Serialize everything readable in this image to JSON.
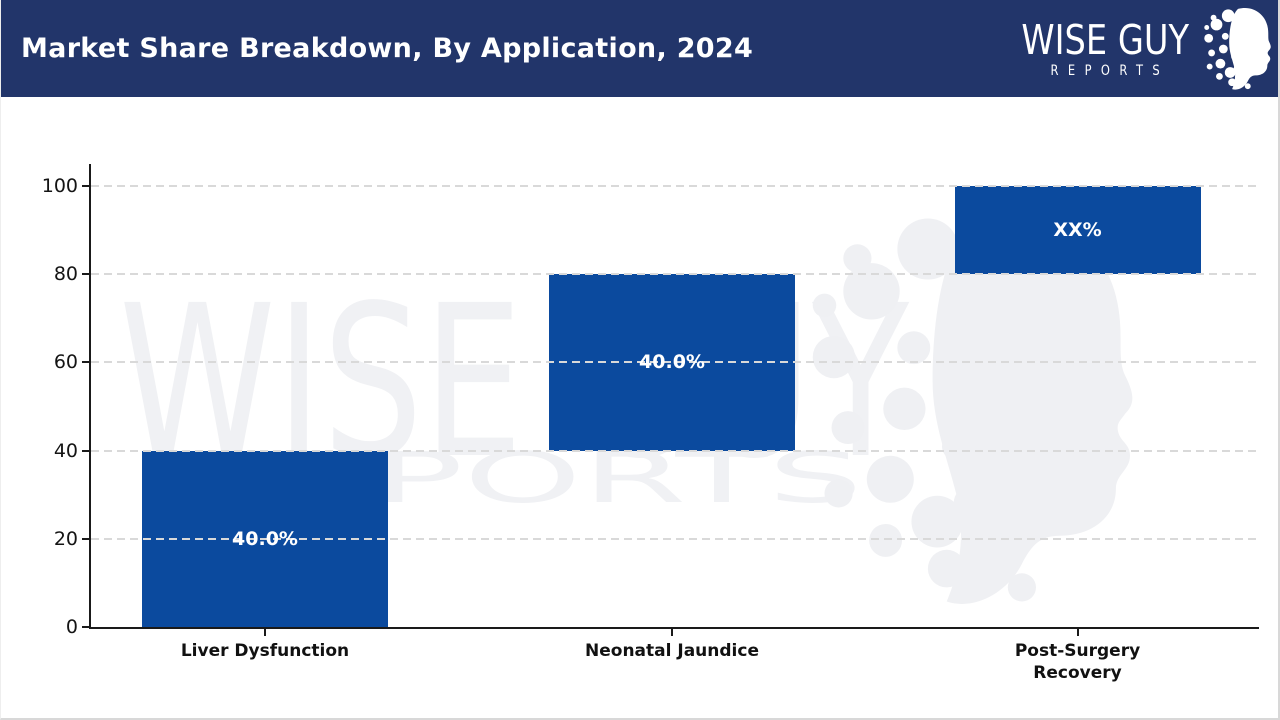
{
  "header": {
    "title": "Market Share Breakdown, By Application, 2024",
    "brand": {
      "line1": "WISE GUY",
      "line2": "REPORTS"
    }
  },
  "watermark": {
    "line1": "WISE GUY",
    "line2": "REPORTS"
  },
  "colors": {
    "header_bg": "#22356A",
    "bar": "#0B4A9E",
    "bar_label": "#ffffff",
    "grid": "#d9d9d9",
    "axis": "#1a1a1a",
    "watermark": "#f0f1f4"
  },
  "chart_data": {
    "type": "bar",
    "subtype": "waterfall-market-share",
    "title": "Market Share Breakdown, By Application, 2024",
    "categories": [
      "Liver Dysfunction",
      "Neonatal Jaundice",
      "Post-Surgery Recovery"
    ],
    "x_tick_labels": [
      "Liver Dysfunction",
      "Neonatal Jaundice",
      "Post-Surgery\nRecovery"
    ],
    "bars": [
      {
        "category": "Liver Dysfunction",
        "start": 0,
        "end": 40,
        "value_label": "40.0%"
      },
      {
        "category": "Neonatal Jaundice",
        "start": 40,
        "end": 80,
        "value_label": "40.0%"
      },
      {
        "category": "Post-Surgery Recovery",
        "start": 80,
        "end": 100,
        "value_label": "XX%"
      }
    ],
    "xlabel": "",
    "ylabel": "",
    "y_ticks": [
      0,
      20,
      40,
      60,
      80,
      100
    ],
    "ylim": [
      0,
      105
    ],
    "grid": "horizontal-dashed-over-bars",
    "legend": "none",
    "bar_color": "#0B4A9E",
    "value_label_color": "#ffffff"
  }
}
